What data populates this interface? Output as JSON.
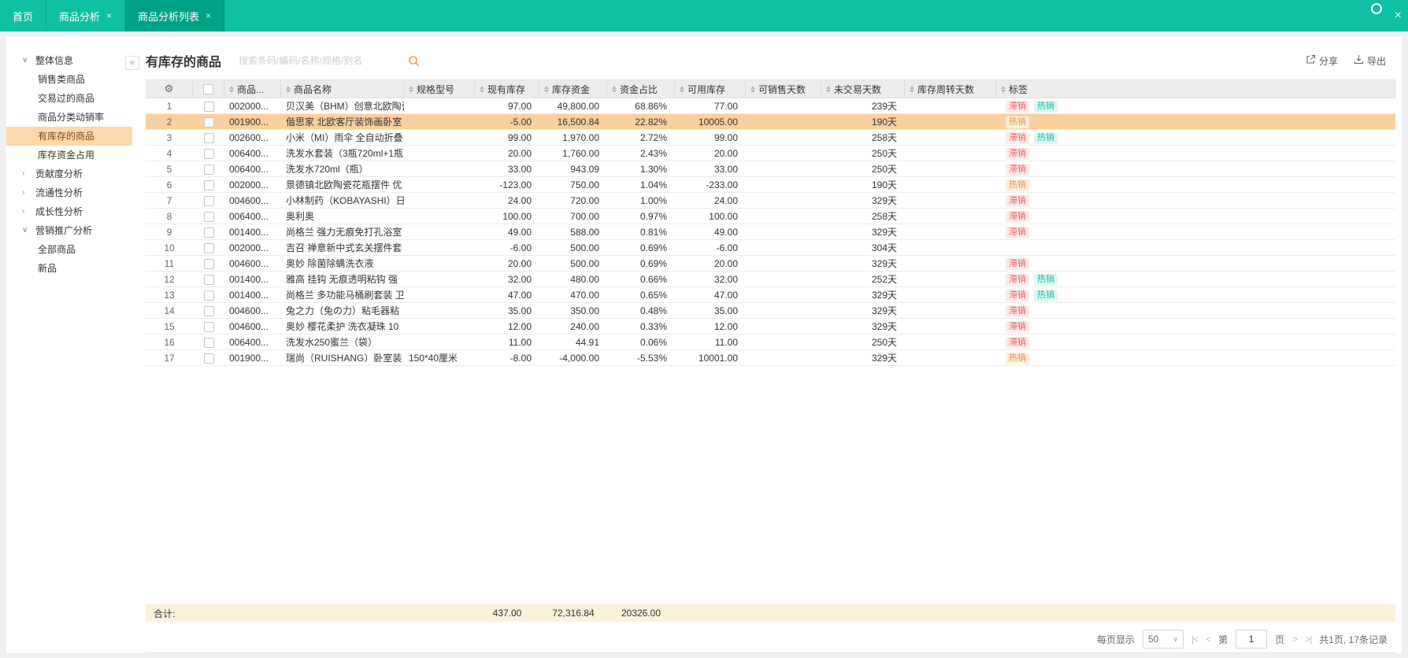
{
  "colors": {
    "topbar_teal": "#10c0a2",
    "active_tab_teal": "#00a287",
    "selected_row_orange": "#fbcf9e",
    "sidebar_selected_orange": "#fdd8ab",
    "summary_cream": "#fcf1da",
    "tag_red": "#f25b5b",
    "tag_teal": "#13bfa2",
    "tag_orange": "#fa8c3c",
    "search_icon_orange": "#ff9332"
  },
  "icons": {
    "gear": "⚙",
    "collapse": "«",
    "chevron_expanded": "∨",
    "chevron_collapsed": "›",
    "tab_close": "×",
    "window_close": "×",
    "select_caret": "∨",
    "pager_first": "|<",
    "pager_prev": "<",
    "pager_next": ">",
    "pager_last": ">|"
  },
  "topbar": {
    "tabs": [
      {
        "label": "首页",
        "closable": false,
        "active": false
      },
      {
        "label": "商品分析",
        "closable": true,
        "active": false
      },
      {
        "label": "商品分析列表",
        "closable": true,
        "active": true
      }
    ]
  },
  "sidebar": {
    "groups": [
      {
        "label": "整体信息",
        "expanded": true,
        "selected_child": "有库存的商品",
        "children": [
          "销售类商品",
          "交易过的商品",
          "商品分类动销率",
          "有库存的商品",
          "库存资金占用"
        ]
      },
      {
        "label": "贡献度分析",
        "expanded": false,
        "selected_child": null,
        "children": []
      },
      {
        "label": "流通性分析",
        "expanded": false,
        "selected_child": null,
        "children": []
      },
      {
        "label": "成长性分析",
        "expanded": false,
        "selected_child": null,
        "children": []
      },
      {
        "label": "营销推广分析",
        "expanded": true,
        "selected_child": null,
        "children": [
          "全部商品",
          "新品"
        ]
      }
    ]
  },
  "header": {
    "title": "有库存的商品",
    "search_placeholder": "搜索条码/编码/名称/规格/别名",
    "share_label": "分享",
    "export_label": "导出"
  },
  "table": {
    "columns": [
      "商品...",
      "商品名称",
      "规格型号",
      "现有库存",
      "库存资金",
      "资金占比",
      "可用库存",
      "可销售天数",
      "未交易天数",
      "库存周转天数",
      "标签"
    ],
    "rows": [
      {
        "idx": "1",
        "code": "002000...",
        "name": "贝汉美（BHM）创意北欧陶瓷",
        "spec": "",
        "stock": "97.00",
        "fund": "49,800.00",
        "ratio": "68.86%",
        "avail": "77.00",
        "sell": "",
        "notrade": "239天",
        "turnover": "",
        "selected": false,
        "tags": [
          {
            "label": "滞销",
            "type": "red"
          },
          {
            "label": "热销",
            "type": "teal"
          }
        ]
      },
      {
        "idx": "2",
        "code": "001900...",
        "name": "偕思家 北欧客厅装饰画卧室",
        "spec": "",
        "stock": "-5.00",
        "fund": "16,500.84",
        "ratio": "22.82%",
        "avail": "10005.00",
        "sell": "",
        "notrade": "190天",
        "turnover": "",
        "selected": true,
        "tags": [
          {
            "label": "热销",
            "type": "orange"
          }
        ]
      },
      {
        "idx": "3",
        "code": "002600...",
        "name": "小米（MI）雨伞 全自动折叠",
        "spec": "",
        "stock": "99.00",
        "fund": "1,970.00",
        "ratio": "2.72%",
        "avail": "99.00",
        "sell": "",
        "notrade": "258天",
        "turnover": "",
        "selected": false,
        "tags": [
          {
            "label": "滞销",
            "type": "red"
          },
          {
            "label": "热销",
            "type": "teal"
          }
        ]
      },
      {
        "idx": "4",
        "code": "006400...",
        "name": "洗发水套装（3瓶720ml+1瓶",
        "spec": "",
        "stock": "20.00",
        "fund": "1,760.00",
        "ratio": "2.43%",
        "avail": "20.00",
        "sell": "",
        "notrade": "250天",
        "turnover": "",
        "selected": false,
        "tags": [
          {
            "label": "滞销",
            "type": "red"
          }
        ]
      },
      {
        "idx": "5",
        "code": "006400...",
        "name": "洗发水720ml（瓶）",
        "spec": "",
        "stock": "33.00",
        "fund": "943.09",
        "ratio": "1.30%",
        "avail": "33.00",
        "sell": "",
        "notrade": "250天",
        "turnover": "",
        "selected": false,
        "tags": [
          {
            "label": "滞销",
            "type": "red"
          }
        ]
      },
      {
        "idx": "6",
        "code": "002000...",
        "name": "景德镇北欧陶瓷花瓶摆件 优",
        "spec": "",
        "stock": "-123.00",
        "fund": "750.00",
        "ratio": "1.04%",
        "avail": "-233.00",
        "sell": "",
        "notrade": "190天",
        "turnover": "",
        "selected": false,
        "tags": [
          {
            "label": "热销",
            "type": "orange"
          }
        ]
      },
      {
        "idx": "7",
        "code": "004600...",
        "name": "小林制药（KOBAYASHI）日",
        "spec": "",
        "stock": "24.00",
        "fund": "720.00",
        "ratio": "1.00%",
        "avail": "24.00",
        "sell": "",
        "notrade": "329天",
        "turnover": "",
        "selected": false,
        "tags": [
          {
            "label": "滞销",
            "type": "red"
          }
        ]
      },
      {
        "idx": "8",
        "code": "006400...",
        "name": "奥利奥",
        "spec": "",
        "stock": "100.00",
        "fund": "700.00",
        "ratio": "0.97%",
        "avail": "100.00",
        "sell": "",
        "notrade": "258天",
        "turnover": "",
        "selected": false,
        "tags": [
          {
            "label": "滞销",
            "type": "red"
          }
        ]
      },
      {
        "idx": "9",
        "code": "001400...",
        "name": "尚格兰 强力无痕免打孔浴室",
        "spec": "",
        "stock": "49.00",
        "fund": "588.00",
        "ratio": "0.81%",
        "avail": "49.00",
        "sell": "",
        "notrade": "329天",
        "turnover": "",
        "selected": false,
        "tags": [
          {
            "label": "滞销",
            "type": "red"
          }
        ]
      },
      {
        "idx": "10",
        "code": "002000...",
        "name": "吉召 禅意新中式玄关摆件套",
        "spec": "",
        "stock": "-6.00",
        "fund": "500.00",
        "ratio": "0.69%",
        "avail": "-6.00",
        "sell": "",
        "notrade": "304天",
        "turnover": "",
        "selected": false,
        "tags": []
      },
      {
        "idx": "11",
        "code": "004600...",
        "name": "奥妙 除菌除螨洗衣液",
        "spec": "",
        "stock": "20.00",
        "fund": "500.00",
        "ratio": "0.69%",
        "avail": "20.00",
        "sell": "",
        "notrade": "329天",
        "turnover": "",
        "selected": false,
        "tags": [
          {
            "label": "滞销",
            "type": "red"
          }
        ]
      },
      {
        "idx": "12",
        "code": "001400...",
        "name": "雅高 挂钩 无痕透明粘钩 强",
        "spec": "",
        "stock": "32.00",
        "fund": "480.00",
        "ratio": "0.66%",
        "avail": "32.00",
        "sell": "",
        "notrade": "252天",
        "turnover": "",
        "selected": false,
        "tags": [
          {
            "label": "滞销",
            "type": "red"
          },
          {
            "label": "热销",
            "type": "teal"
          }
        ]
      },
      {
        "idx": "13",
        "code": "001400...",
        "name": "尚格兰 多功能马桶刷套装 卫",
        "spec": "",
        "stock": "47.00",
        "fund": "470.00",
        "ratio": "0.65%",
        "avail": "47.00",
        "sell": "",
        "notrade": "329天",
        "turnover": "",
        "selected": false,
        "tags": [
          {
            "label": "滞销",
            "type": "red"
          },
          {
            "label": "热销",
            "type": "teal"
          }
        ]
      },
      {
        "idx": "14",
        "code": "004600...",
        "name": "兔之力（兔の力）粘毛器粘",
        "spec": "",
        "stock": "35.00",
        "fund": "350.00",
        "ratio": "0.48%",
        "avail": "35.00",
        "sell": "",
        "notrade": "329天",
        "turnover": "",
        "selected": false,
        "tags": [
          {
            "label": "滞销",
            "type": "red"
          }
        ]
      },
      {
        "idx": "15",
        "code": "004600...",
        "name": "奥妙 樱花柔护 洗衣凝珠 10",
        "spec": "",
        "stock": "12.00",
        "fund": "240.00",
        "ratio": "0.33%",
        "avail": "12.00",
        "sell": "",
        "notrade": "329天",
        "turnover": "",
        "selected": false,
        "tags": [
          {
            "label": "滞销",
            "type": "red"
          }
        ]
      },
      {
        "idx": "16",
        "code": "006400...",
        "name": "洗发水250蜜兰（袋）",
        "spec": "",
        "stock": "11.00",
        "fund": "44.91",
        "ratio": "0.06%",
        "avail": "11.00",
        "sell": "",
        "notrade": "250天",
        "turnover": "",
        "selected": false,
        "tags": [
          {
            "label": "滞销",
            "type": "red"
          }
        ]
      },
      {
        "idx": "17",
        "code": "001900...",
        "name": "瑞尚（RUISHANG）卧室装",
        "spec": "150*40厘米",
        "stock": "-8.00",
        "fund": "-4,000.00",
        "ratio": "-5.53%",
        "avail": "10001.00",
        "sell": "",
        "notrade": "329天",
        "turnover": "",
        "selected": false,
        "tags": [
          {
            "label": "热销",
            "type": "orange"
          }
        ]
      }
    ],
    "summary": {
      "label": "合计:",
      "stock_total": "437.00",
      "fund_total": "72,316.84",
      "avail_total": "20326.00"
    }
  },
  "pagination": {
    "page_size_label": "每页显示",
    "page_size": "50",
    "page_prefix": "第",
    "page_value": "1",
    "page_suffix": "页",
    "total_text": "共1页, 17条记录"
  }
}
